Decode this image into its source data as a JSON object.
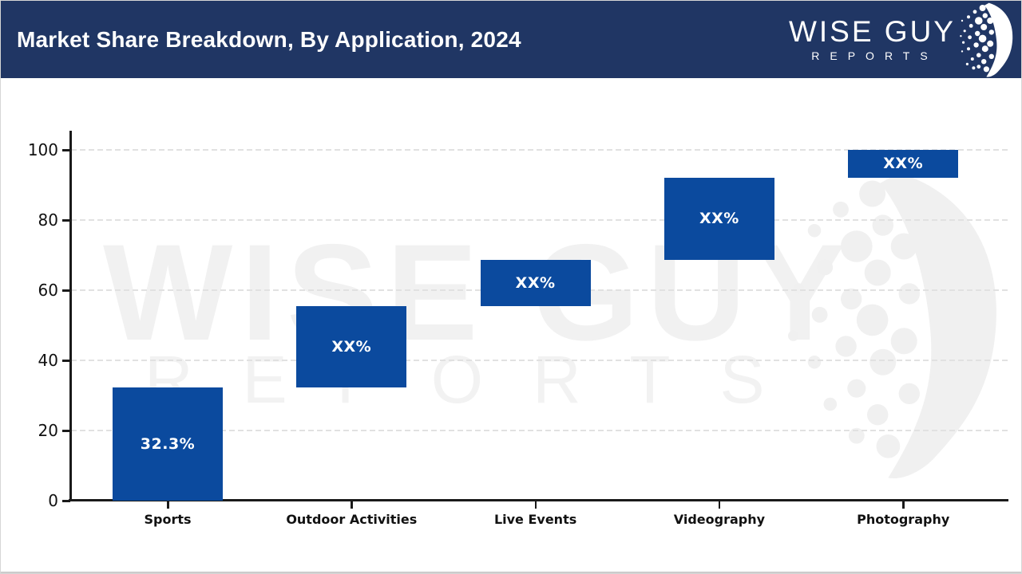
{
  "header": {
    "title": "Market Share Breakdown, By Application, 2024",
    "bg_color": "#203664",
    "logo": {
      "line1": "WISE GUY",
      "line2": "REPORTS"
    }
  },
  "watermark": {
    "line1": "WISE GUY",
    "line2": "REPORTS"
  },
  "chart_data": {
    "type": "bar",
    "subtype": "waterfall",
    "title": "Market Share Breakdown, By Application, 2024",
    "categories": [
      "Sports",
      "Outdoor Activities",
      "Live Events",
      "Videography",
      "Photography"
    ],
    "segments": [
      [
        0,
        32.3
      ],
      [
        32.3,
        55.5
      ],
      [
        55.5,
        68.7
      ],
      [
        68.7,
        92.1
      ],
      [
        92.1,
        100
      ]
    ],
    "values_redacted": [
      32.3,
      "XX",
      "XX",
      "XX",
      "XX"
    ],
    "bar_labels": [
      "32.3%",
      "XX%",
      "XX%",
      "XX%",
      "XX%"
    ],
    "yticks": [
      0,
      20,
      40,
      60,
      80,
      100
    ],
    "ylim": [
      0,
      105
    ],
    "xlabel": "",
    "ylabel": "",
    "grid": "horizontal-dashed",
    "legend": "none",
    "bar_color": "#0b4a9e",
    "label_color": "#ffffff"
  }
}
